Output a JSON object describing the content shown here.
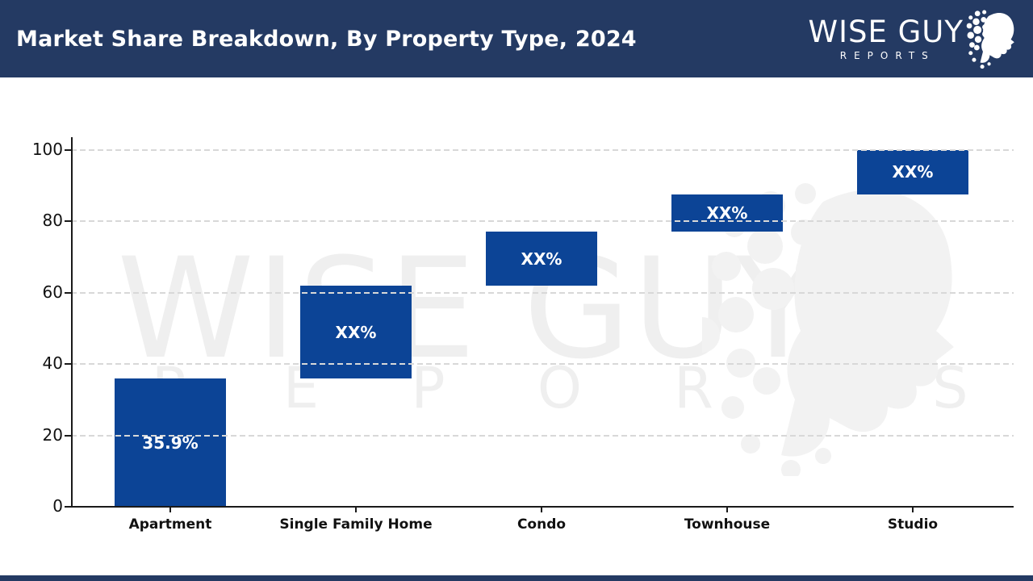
{
  "header": {
    "title": "Market Share Breakdown, By Property Type, 2024",
    "brand": {
      "line1": "WISE GUY",
      "line2": "REPORTS",
      "bg_color": "#243a63",
      "text_color": "#ffffff"
    }
  },
  "watermark": {
    "line1": "WISE GUY",
    "line2": "R E P O R T S",
    "color": "#efefef"
  },
  "chart_data": {
    "type": "bar",
    "subtype": "waterfall",
    "title": "Market Share Breakdown, By Property Type, 2024",
    "categories": [
      "Apartment",
      "Single Family Home",
      "Condo",
      "Townhouse",
      "Studio"
    ],
    "segments": [
      {
        "category": "Apartment",
        "base": 0,
        "top": 35.9,
        "label": "35.9%"
      },
      {
        "category": "Single Family Home",
        "base": 35.9,
        "top": 61.9,
        "label": "XX%"
      },
      {
        "category": "Condo",
        "base": 61.9,
        "top": 77.2,
        "label": "XX%"
      },
      {
        "category": "Townhouse",
        "base": 77.2,
        "top": 87.6,
        "label": "XX%"
      },
      {
        "category": "Studio",
        "base": 87.6,
        "top": 100,
        "label": "XX%"
      }
    ],
    "y_ticks": [
      0,
      20,
      40,
      60,
      80,
      100
    ],
    "ylim": [
      0,
      104
    ],
    "xlabel": "",
    "ylabel": "",
    "grid": true,
    "grid_style": "dashed",
    "legend": "none",
    "bar_color": "#0c4496",
    "bar_label_color": "#ffffff",
    "grid_color": "#d8d8d8",
    "axis_color": "#1a1a1a"
  },
  "footer": {
    "bar_color": "#243a63"
  }
}
